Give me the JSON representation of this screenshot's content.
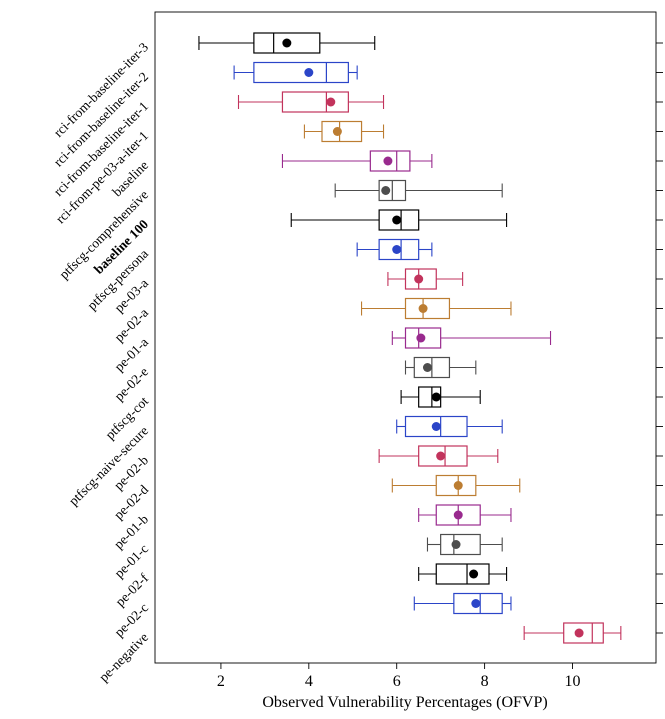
{
  "chart_data": {
    "type": "boxplot",
    "orientation": "horizontal",
    "title": "",
    "xlabel": "Observed Vulnerability Percentages (OFVP)",
    "ylabel": "",
    "xlim": [
      0.5,
      11.9
    ],
    "xticks": [
      2,
      4,
      6,
      8,
      10
    ],
    "xtick_labels": [
      "2",
      "4",
      "6",
      "8",
      "10"
    ],
    "grid": false,
    "legend": "none",
    "palette": [
      "#000000",
      "#2b45c8",
      "#c2335c",
      "#bc7d32",
      "#992a8e",
      "#4d4d4d"
    ],
    "series": [
      {
        "label": "rci-from-baseline-iter-3",
        "bold": false,
        "color": "#000000",
        "min": 1.5,
        "q1": 2.75,
        "median": 3.2,
        "q3": 4.25,
        "max": 5.5,
        "mean": 3.5
      },
      {
        "label": "rci-from-baseline-iter-2",
        "bold": false,
        "color": "#2b45c8",
        "min": 2.3,
        "q1": 2.75,
        "median": 4.4,
        "q3": 4.9,
        "max": 5.1,
        "mean": 4.0
      },
      {
        "label": "rci-from-baseline-iter-1",
        "bold": false,
        "color": "#c2335c",
        "min": 2.4,
        "q1": 3.4,
        "median": 4.4,
        "q3": 4.9,
        "max": 5.7,
        "mean": 4.5
      },
      {
        "label": "rci-from-pe-03-a-iter-1",
        "bold": false,
        "color": "#bc7d32",
        "min": 3.9,
        "q1": 4.3,
        "median": 4.7,
        "q3": 5.2,
        "max": 5.7,
        "mean": 4.65
      },
      {
        "label": "baseline",
        "bold": false,
        "color": "#992a8e",
        "min": 3.4,
        "q1": 5.4,
        "median": 6.0,
        "q3": 6.3,
        "max": 6.8,
        "mean": 5.8
      },
      {
        "label": "ptfscg-comprehensive",
        "bold": false,
        "color": "#4d4d4d",
        "min": 4.6,
        "q1": 5.6,
        "median": 5.9,
        "q3": 6.2,
        "max": 8.4,
        "mean": 5.75
      },
      {
        "label": "baseline 100",
        "bold": true,
        "color": "#000000",
        "min": 3.6,
        "q1": 5.6,
        "median": 6.1,
        "q3": 6.5,
        "max": 8.5,
        "mean": 6.0
      },
      {
        "label": "ptfscg-persona",
        "bold": false,
        "color": "#2b45c8",
        "min": 5.1,
        "q1": 5.6,
        "median": 6.1,
        "q3": 6.5,
        "max": 6.8,
        "mean": 6.0
      },
      {
        "label": "pe-03-a",
        "bold": false,
        "color": "#c2335c",
        "min": 5.8,
        "q1": 6.2,
        "median": 6.5,
        "q3": 6.9,
        "max": 7.5,
        "mean": 6.5
      },
      {
        "label": "pe-02-a",
        "bold": false,
        "color": "#bc7d32",
        "min": 5.2,
        "q1": 6.2,
        "median": 6.6,
        "q3": 7.2,
        "max": 8.6,
        "mean": 6.6
      },
      {
        "label": "pe-01-a",
        "bold": false,
        "color": "#992a8e",
        "min": 5.9,
        "q1": 6.2,
        "median": 6.5,
        "q3": 7.0,
        "max": 9.5,
        "mean": 6.55
      },
      {
        "label": "pe-02-e",
        "bold": false,
        "color": "#4d4d4d",
        "min": 6.2,
        "q1": 6.4,
        "median": 6.8,
        "q3": 7.2,
        "max": 7.8,
        "mean": 6.7
      },
      {
        "label": "ptfscg-cot",
        "bold": false,
        "color": "#000000",
        "min": 6.1,
        "q1": 6.5,
        "median": 6.8,
        "q3": 7.0,
        "max": 7.9,
        "mean": 6.9
      },
      {
        "label": "ptfscg-naive-secure",
        "bold": false,
        "color": "#2b45c8",
        "min": 6.0,
        "q1": 6.2,
        "median": 7.0,
        "q3": 7.6,
        "max": 8.4,
        "mean": 6.9
      },
      {
        "label": "pe-02-b",
        "bold": false,
        "color": "#c2335c",
        "min": 5.6,
        "q1": 6.5,
        "median": 7.1,
        "q3": 7.6,
        "max": 8.3,
        "mean": 7.0
      },
      {
        "label": "pe-02-d",
        "bold": false,
        "color": "#bc7d32",
        "min": 5.9,
        "q1": 6.9,
        "median": 7.4,
        "q3": 7.8,
        "max": 8.8,
        "mean": 7.4
      },
      {
        "label": "pe-01-b",
        "bold": false,
        "color": "#992a8e",
        "min": 6.5,
        "q1": 6.9,
        "median": 7.4,
        "q3": 7.9,
        "max": 8.6,
        "mean": 7.4
      },
      {
        "label": "pe-01-c",
        "bold": false,
        "color": "#4d4d4d",
        "min": 6.7,
        "q1": 7.0,
        "median": 7.3,
        "q3": 7.9,
        "max": 8.4,
        "mean": 7.35
      },
      {
        "label": "pe-02-f",
        "bold": false,
        "color": "#000000",
        "min": 6.5,
        "q1": 6.9,
        "median": 7.6,
        "q3": 8.1,
        "max": 8.5,
        "mean": 7.75
      },
      {
        "label": "pe-02-c",
        "bold": false,
        "color": "#2b45c8",
        "min": 6.4,
        "q1": 7.3,
        "median": 7.9,
        "q3": 8.4,
        "max": 8.6,
        "mean": 7.8
      },
      {
        "label": "pe-negative",
        "bold": false,
        "color": "#c2335c",
        "min": 8.9,
        "q1": 9.8,
        "median": 10.45,
        "q3": 10.7,
        "max": 11.1,
        "mean": 10.15
      }
    ]
  }
}
